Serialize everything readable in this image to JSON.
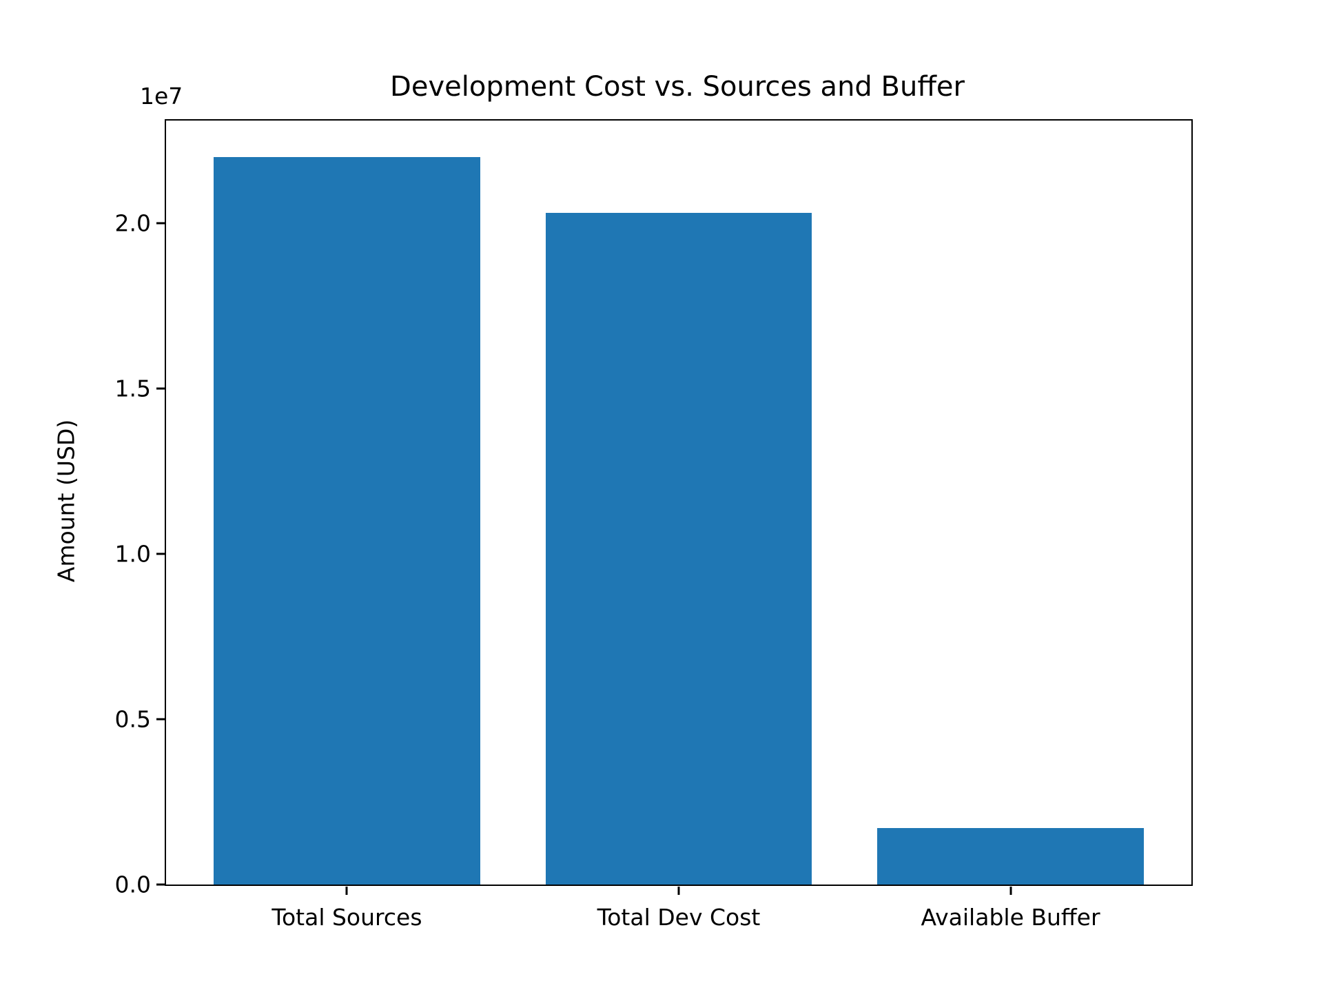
{
  "figure": {
    "background": "#ffffff",
    "text_color": "#000000"
  },
  "chart_data": {
    "type": "bar",
    "title": "Development Cost vs. Sources and Buffer",
    "xlabel": "",
    "ylabel": "Amount (USD)",
    "y_offset_label": "1e7",
    "categories": [
      "Total Sources",
      "Total Dev Cost",
      "Available Buffer"
    ],
    "values": [
      22000000,
      20300000,
      1700000
    ],
    "bar_color": "#1f77b4",
    "ylim": [
      0,
      23100000
    ],
    "yticks": [
      0,
      5000000,
      10000000,
      15000000,
      20000000
    ],
    "ytick_labels": [
      "0.0",
      "0.5",
      "1.0",
      "1.5",
      "2.0"
    ],
    "grid": false,
    "legend_position": "none"
  }
}
